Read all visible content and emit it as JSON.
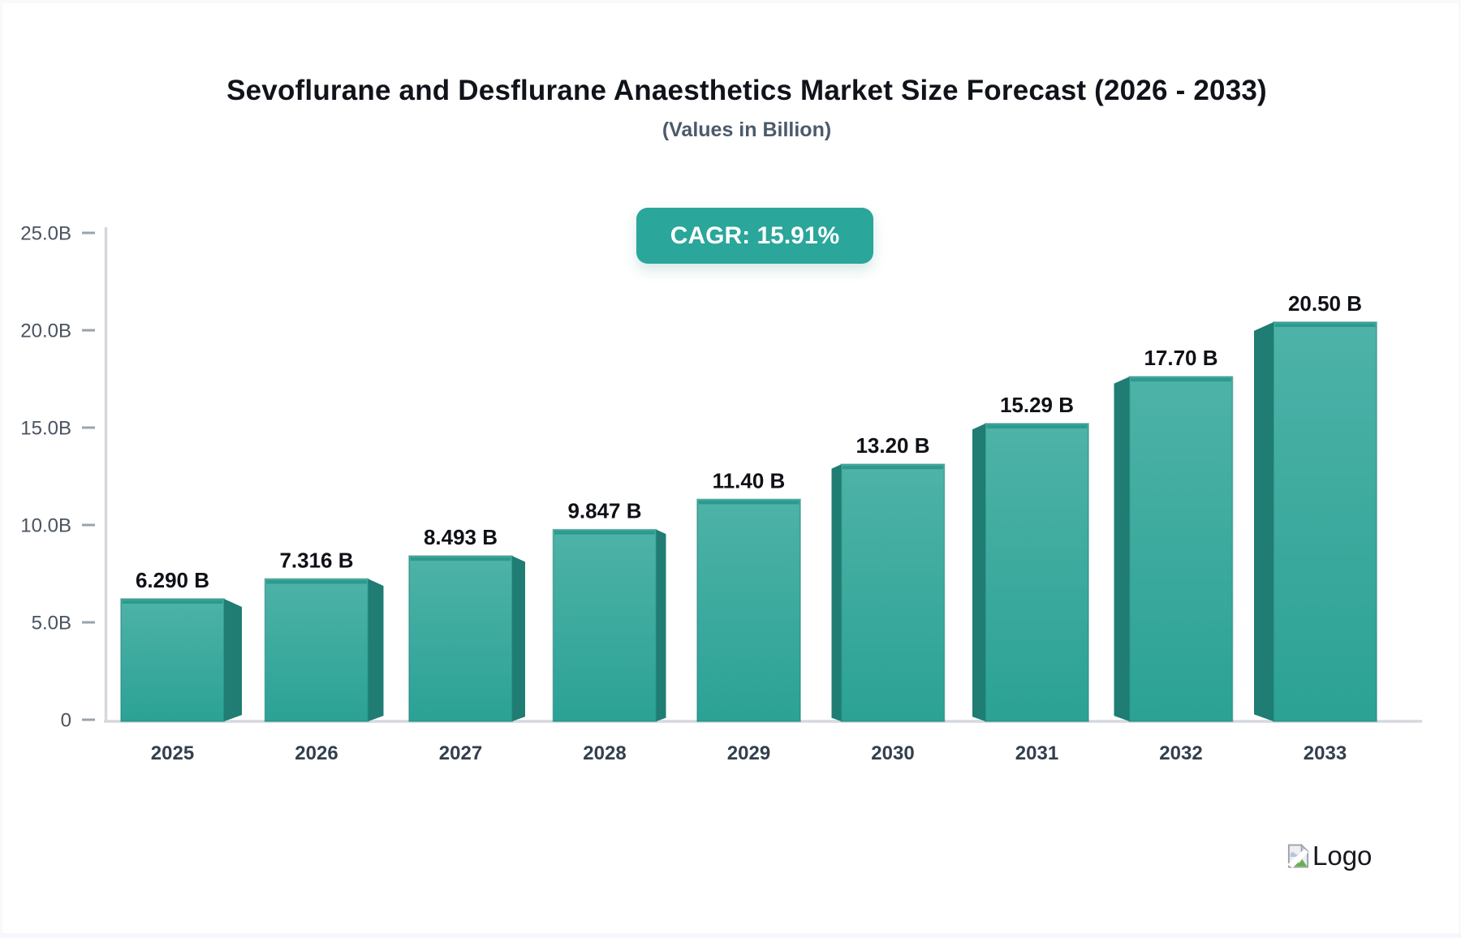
{
  "header": {
    "title": "Sevoflurane and Desflurane Anaesthetics Market Size Forecast (2026 - 2033)",
    "subtitle": "(Values in Billion)"
  },
  "badge": {
    "label": "CAGR: 15.91%",
    "color": "#2aa69a",
    "text_color": "#ffffff"
  },
  "footer": {
    "logo_text": "Logo",
    "logo_icon": "broken-image-icon"
  },
  "chart_data": {
    "type": "bar",
    "style": "3d-perspective-center",
    "title": "Sevoflurane and Desflurane Anaesthetics Market Size Forecast (2026 - 2033)",
    "subtitle": "(Values in Billion)",
    "cagr_annotation": "CAGR: 15.91%",
    "categories": [
      "2025",
      "2026",
      "2027",
      "2028",
      "2029",
      "2030",
      "2031",
      "2032",
      "2033"
    ],
    "values": [
      6.29,
      7.316,
      8.493,
      9.847,
      11.4,
      13.2,
      15.29,
      17.7,
      20.5
    ],
    "value_labels": [
      "6.290 B",
      "7.316 B",
      "8.493 B",
      "9.847 B",
      "11.40 B",
      "13.20 B",
      "15.29 B",
      "17.70 B",
      "20.50 B"
    ],
    "unit": "Billion",
    "xlabel": "",
    "ylabel": "",
    "ylim": [
      0,
      25
    ],
    "yticks": [
      0,
      5,
      10,
      15,
      20,
      25
    ],
    "ytick_labels": [
      "0",
      "5.0B",
      "10.0B",
      "15.0B",
      "20.0B",
      "25.0B"
    ],
    "grid": false,
    "legend": "none",
    "colors": {
      "bar_face_top": "#4eb2a8",
      "bar_face_bottom": "#2ba294",
      "bar_face_edge": "#1d8378",
      "bar_top_strip": "#2d9a8e",
      "bar_side": "#1f7d73",
      "axis_line": "#d5d8de",
      "tick_mark": "#9aa3ad",
      "ytick_label": "#4a5360",
      "xtick_label": "#333f4f",
      "value_label": "#0e1116"
    }
  }
}
